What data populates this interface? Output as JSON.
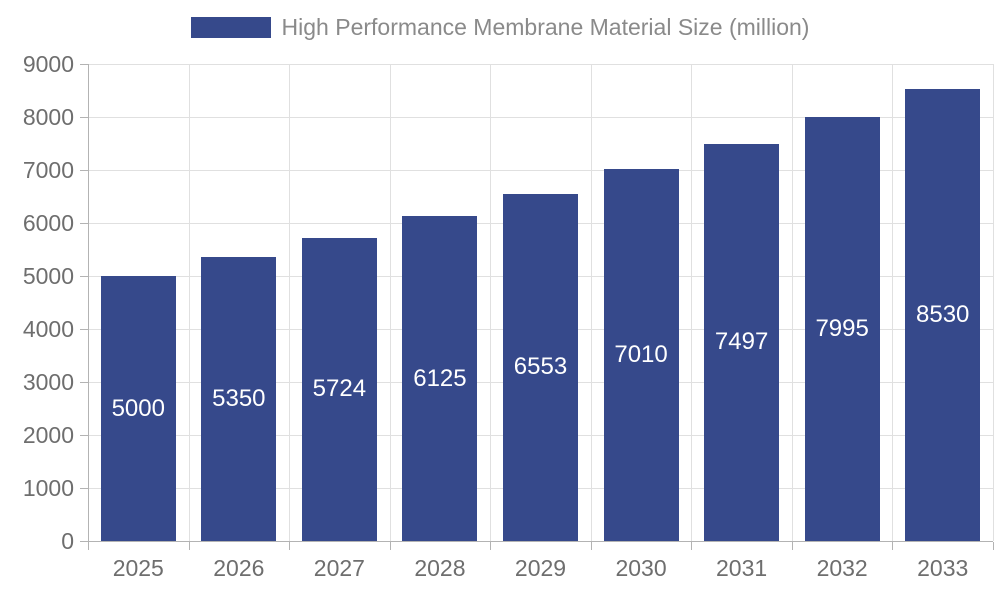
{
  "legend": {
    "label": "High Performance Membrane Material Size (million)"
  },
  "chart_data": {
    "type": "bar",
    "title": "High Performance Membrane Material Size (million)",
    "categories": [
      "2025",
      "2026",
      "2027",
      "2028",
      "2029",
      "2030",
      "2031",
      "2032",
      "2033"
    ],
    "values": [
      5000,
      5350,
      5724,
      6125,
      6553,
      7010,
      7497,
      7995,
      8530
    ],
    "xlabel": "",
    "ylabel": "",
    "ylim": [
      0,
      9000
    ],
    "ytick_step": 1000,
    "yticks": [
      0,
      1000,
      2000,
      3000,
      4000,
      5000,
      6000,
      7000,
      8000,
      9000
    ],
    "grid": true,
    "legend_position": "top",
    "bar_value_labels": "inside-center"
  },
  "style": {
    "bar_color": "#36498B",
    "grid_color": "#E0E0E0",
    "axis_color": "#B3B3B3",
    "axis_label_color": "#6E6E6E",
    "legend_text_color": "#8A8A8A",
    "bar_value_color": "#FFFFFF",
    "background": "#FFFFFF"
  }
}
